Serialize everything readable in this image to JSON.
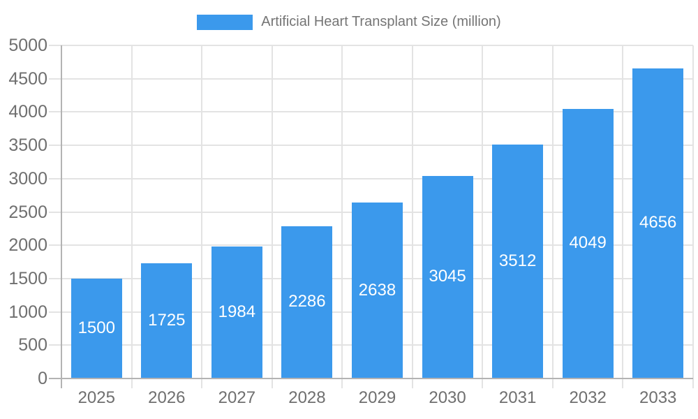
{
  "chart_data": {
    "type": "bar",
    "title": "Artificial Heart Transplant Size (million)",
    "categories": [
      "2025",
      "2026",
      "2027",
      "2028",
      "2029",
      "2030",
      "2031",
      "2032",
      "2033"
    ],
    "values": [
      1500,
      1725,
      1984,
      2286,
      2638,
      3045,
      3512,
      4049,
      4656
    ],
    "xlabel": "",
    "ylabel": "",
    "ylim": [
      0,
      5000
    ],
    "ytick_step": 500,
    "ytick_labels": [
      "0",
      "500",
      "1000",
      "1500",
      "2000",
      "2500",
      "3000",
      "3500",
      "4000",
      "4500",
      "5000"
    ],
    "legend_position": "top",
    "grid": true,
    "colors": {
      "bar": "#3B99EC",
      "value_label": "#FFFFFF",
      "axis_text": "#6F6F6F",
      "title_text": "#757575",
      "gridline": "#E3E3E3",
      "axis_line": "#B3B3B3",
      "background": "#FFFFFF"
    }
  }
}
